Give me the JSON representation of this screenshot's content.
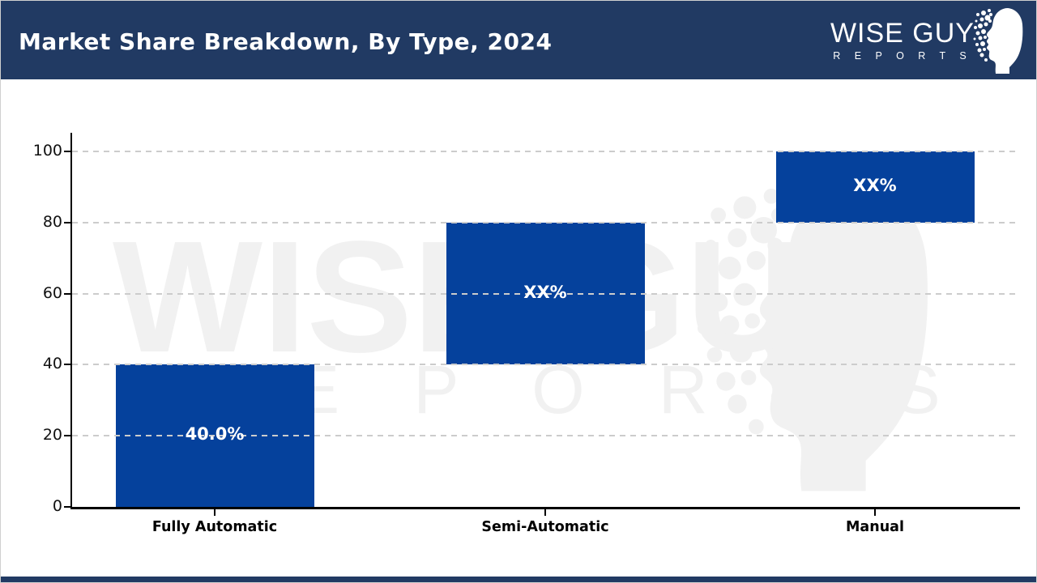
{
  "header": {
    "title": "Market Share Breakdown, By Type, 2024",
    "background": "#213a63",
    "logo": {
      "name": "WISE GUY",
      "tagline": "R E P O R T S",
      "icon": "dotted-head-profile"
    }
  },
  "watermark": {
    "line1": "WISE GUY",
    "line2": "R E P O R T S",
    "color": "#f1f1f1"
  },
  "footer": {
    "accent_bar_color": "#213a63"
  },
  "chart_data": {
    "type": "bar",
    "subtype": "waterfall",
    "title": "Market Share Breakdown, By Type, 2024",
    "categories": [
      "Fully Automatic",
      "Semi-Automatic",
      "Manual"
    ],
    "series": [
      {
        "name": "Fully Automatic",
        "base": 0,
        "top": 40,
        "label": "40.0%"
      },
      {
        "name": "Semi-Automatic",
        "base": 40,
        "top": 80,
        "label": "XX%"
      },
      {
        "name": "Manual",
        "base": 80,
        "top": 100,
        "label": "XX%"
      }
    ],
    "xlabel": "",
    "ylabel": "",
    "ylim": [
      0,
      105
    ],
    "yticks": [
      0,
      20,
      40,
      60,
      80,
      100
    ],
    "grid": "horizontal-dashed",
    "grid_above_bars": true,
    "legend": "none",
    "bar_color": "#05419c",
    "bar_label_color": "#ffffff",
    "axis_color": "#000000",
    "grid_color": "#cccccc",
    "tick_label_color": "#111111"
  },
  "colors": {
    "navy": "#213a63",
    "bar_blue": "#05419c",
    "watermark_gray": "#f1f1f1",
    "grid_gray": "#cccccc"
  }
}
